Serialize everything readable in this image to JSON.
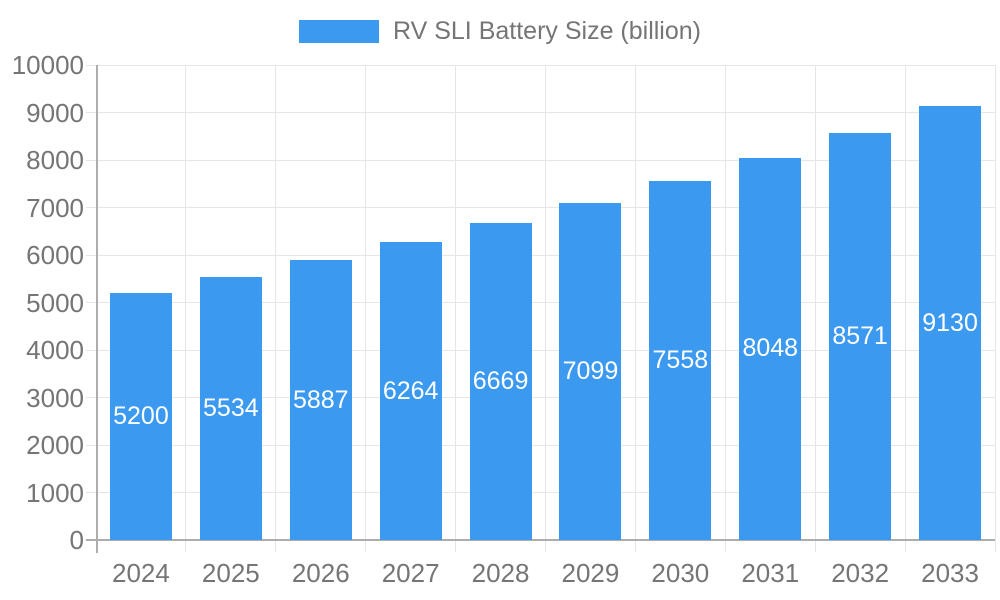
{
  "chart_data": {
    "type": "bar",
    "title": "RV SLI Battery Size (billion)",
    "legend_position": "top",
    "categories": [
      "2024",
      "2025",
      "2026",
      "2027",
      "2028",
      "2029",
      "2030",
      "2031",
      "2032",
      "2033"
    ],
    "series": [
      {
        "name": "RV SLI Battery Size (billion)",
        "values": [
          5200,
          5534,
          5887,
          6264,
          6669,
          7099,
          7558,
          8048,
          8571,
          9130
        ]
      }
    ],
    "bar_labels": [
      "5200",
      "5534",
      "5887",
      "6264",
      "6669",
      "7099",
      "7558",
      "8048",
      "8571",
      "9130"
    ],
    "xlabel": "",
    "ylabel": "",
    "ylim": [
      0,
      10000
    ],
    "yticks": [
      0,
      1000,
      2000,
      3000,
      4000,
      5000,
      6000,
      7000,
      8000,
      9000,
      10000
    ],
    "grid": true,
    "colors": {
      "bar": "#3B99F0",
      "bar_label": "#FFFFFF",
      "axis_label": "#757575",
      "gridline": "#E6E6E6",
      "axis_line": "#ADADAD",
      "background": "#FFFFFF"
    }
  }
}
